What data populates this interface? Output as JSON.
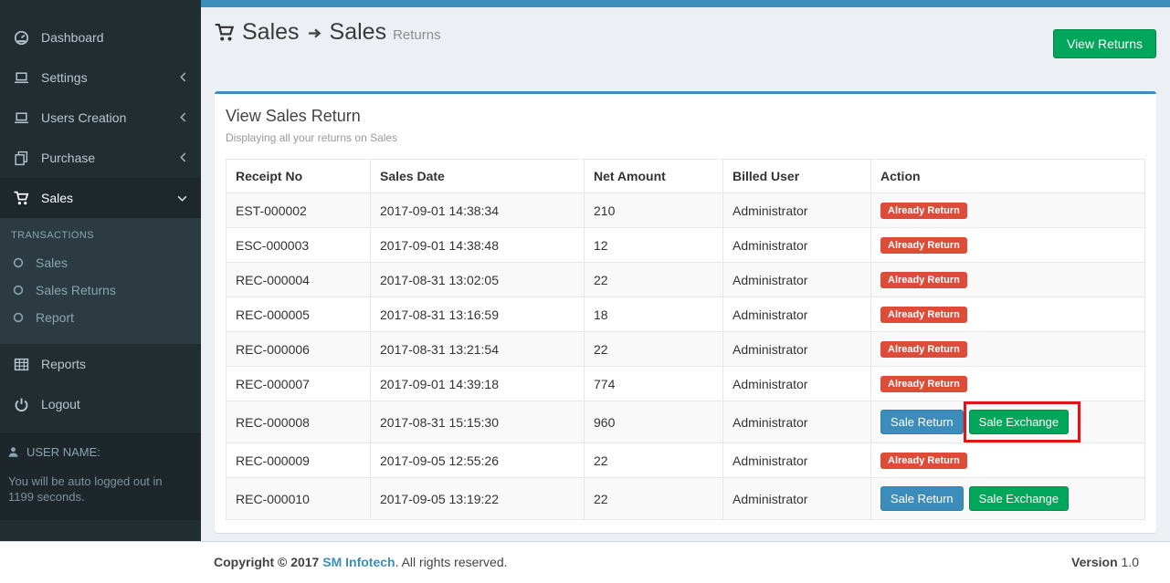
{
  "sidebar": {
    "items": [
      {
        "label": "Dashboard",
        "icon": "dashboard-icon",
        "chevron": "none",
        "active": false
      },
      {
        "label": "Settings",
        "icon": "laptop-icon",
        "chevron": "left",
        "active": false
      },
      {
        "label": "Users Creation",
        "icon": "laptop-icon",
        "chevron": "left",
        "active": false
      },
      {
        "label": "Purchase",
        "icon": "copy-icon",
        "chevron": "left",
        "active": false
      },
      {
        "label": "Sales",
        "icon": "cart-icon",
        "chevron": "down",
        "active": true
      }
    ],
    "submenu_header": "TRANSACTIONS",
    "submenu": [
      "Sales",
      "Sales Returns",
      "Report"
    ],
    "items_after": [
      {
        "label": "Reports",
        "icon": "table-icon"
      },
      {
        "label": "Logout",
        "icon": "power-icon"
      }
    ],
    "user_label": "USER NAME:",
    "auto_logout_text": "You will be auto logged out in 1199 seconds."
  },
  "header": {
    "breadcrumb_root": "Sales",
    "breadcrumb_section": "Sales",
    "breadcrumb_sub": "Returns",
    "view_returns_label": "View Returns"
  },
  "panel": {
    "title": "View Sales Return",
    "subtitle": "Displaying all your returns on Sales"
  },
  "table": {
    "columns": [
      "Receipt No",
      "Sales Date",
      "Net Amount",
      "Billed User",
      "Action"
    ],
    "badge_label": "Already Return",
    "btn_return_label": "Sale Return",
    "btn_exchange_label": "Sale Exchange",
    "rows": [
      {
        "receipt": "EST-000002",
        "date": "2017-09-01 14:38:34",
        "amount": "210",
        "user": "Administrator",
        "action": "already",
        "highlighted": false
      },
      {
        "receipt": "ESC-000003",
        "date": "2017-09-01 14:38:48",
        "amount": "12",
        "user": "Administrator",
        "action": "already",
        "highlighted": false
      },
      {
        "receipt": "REC-000004",
        "date": "2017-08-31 13:02:05",
        "amount": "22",
        "user": "Administrator",
        "action": "already",
        "highlighted": false
      },
      {
        "receipt": "REC-000005",
        "date": "2017-08-31 13:16:59",
        "amount": "18",
        "user": "Administrator",
        "action": "already",
        "highlighted": false
      },
      {
        "receipt": "REC-000006",
        "date": "2017-08-31 13:21:54",
        "amount": "22",
        "user": "Administrator",
        "action": "already",
        "highlighted": false
      },
      {
        "receipt": "REC-000007",
        "date": "2017-09-01 14:39:18",
        "amount": "774",
        "user": "Administrator",
        "action": "already",
        "highlighted": false
      },
      {
        "receipt": "REC-000008",
        "date": "2017-08-31 15:15:30",
        "amount": "960",
        "user": "Administrator",
        "action": "buttons",
        "highlighted": true
      },
      {
        "receipt": "REC-000009",
        "date": "2017-09-05 12:55:26",
        "amount": "22",
        "user": "Administrator",
        "action": "already",
        "highlighted": false
      },
      {
        "receipt": "REC-000010",
        "date": "2017-09-05 13:19:22",
        "amount": "22",
        "user": "Administrator",
        "action": "buttons",
        "highlighted": false
      }
    ]
  },
  "footer": {
    "copyright_prefix": "Copyright © 2017",
    "company": "SM Infotech",
    "copyright_suffix": ". All rights reserved.",
    "version_label": "Version",
    "version_value": "1.0"
  },
  "colors": {
    "accent_blue": "#3c8dbc",
    "success_green": "#00a65a",
    "danger_red": "#dd4b39",
    "annotation_red": "#e41414",
    "sidebar_bg": "#222d32",
    "content_bg": "#ecf0f5"
  }
}
